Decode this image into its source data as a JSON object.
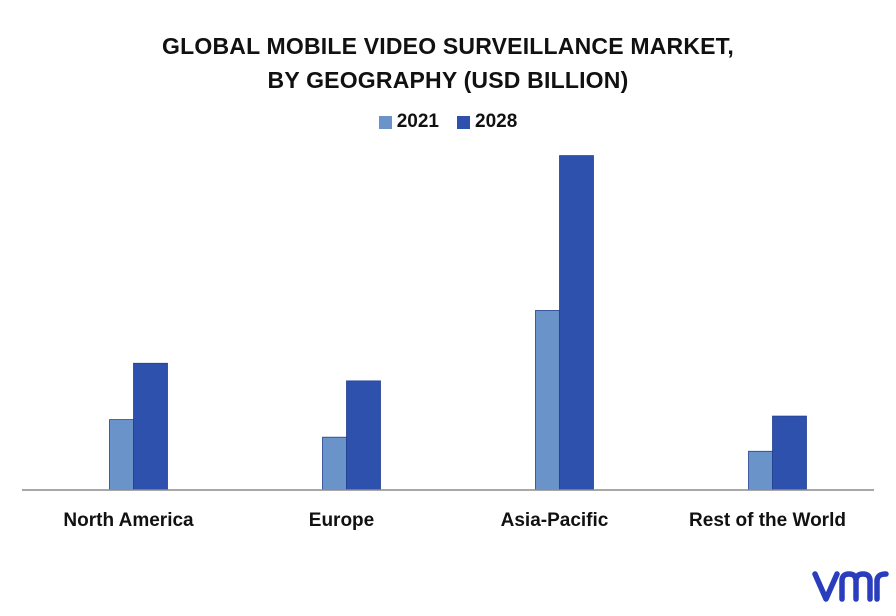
{
  "chart_data": {
    "type": "bar",
    "title_lines": [
      "GLOBAL MOBILE VIDEO SURVEILLANCE MARKET,",
      "BY GEOGRAPHY (USD BILLION)"
    ],
    "categories": [
      "North America",
      "Europe",
      "Asia-Pacific",
      "Rest of the World"
    ],
    "series": [
      {
        "name": "2021",
        "color": "#6a93c9",
        "values": [
          2.0,
          1.5,
          5.1,
          1.1
        ]
      },
      {
        "name": "2028",
        "color": "#2e51ad",
        "values": [
          3.6,
          3.1,
          9.5,
          2.1
        ]
      }
    ],
    "xlabel": "",
    "ylabel": "",
    "ylim": [
      0,
      10
    ],
    "grid": false,
    "legend_position": "top-center"
  },
  "logo": {
    "text": "vmr",
    "color": "#2a3ebd"
  },
  "colors": {
    "axis": "#8c8c8c",
    "text": "#111111"
  }
}
